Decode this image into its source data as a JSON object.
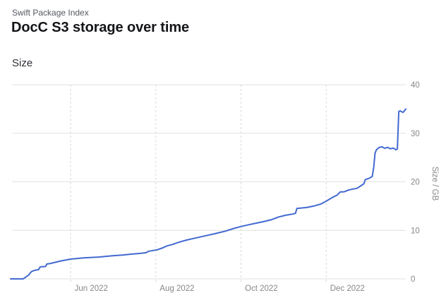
{
  "header": {
    "eyebrow": "Swift Package Index",
    "title": "DocC S3 storage over time"
  },
  "chart_data": {
    "type": "line",
    "title": "Size",
    "ylabel": "Size / GB",
    "xlabel": "",
    "x_domain": [
      "2022-04-19",
      "2023-01-27"
    ],
    "ylim": [
      0,
      40
    ],
    "grid": true,
    "legend": "none",
    "y_ticks": [
      {
        "value": 0,
        "label": "0"
      },
      {
        "value": 10,
        "label": "10"
      },
      {
        "value": 20,
        "label": "20"
      },
      {
        "value": 30,
        "label": "30"
      },
      {
        "value": 40,
        "label": "40"
      }
    ],
    "x_ticks": [
      {
        "date": "2022-06-01",
        "label": "Jun 2022"
      },
      {
        "date": "2022-08-01",
        "label": "Aug 2022"
      },
      {
        "date": "2022-10-01",
        "label": "Oct 2022"
      },
      {
        "date": "2022-12-01",
        "label": "Dec 2022"
      }
    ],
    "colors": {
      "line": "#4269d0",
      "grid_solid": "#e1e1e1",
      "grid_dashed": "#d9d9d9",
      "tick_text": "#878787"
    },
    "series": [
      {
        "name": "Size",
        "points": [
          [
            "2022-04-19",
            0.0
          ],
          [
            "2022-04-28",
            0.0
          ],
          [
            "2022-04-30",
            0.4
          ],
          [
            "2022-05-02",
            0.8
          ],
          [
            "2022-05-03",
            1.2
          ],
          [
            "2022-05-04",
            1.5
          ],
          [
            "2022-05-06",
            1.75
          ],
          [
            "2022-05-09",
            1.9
          ],
          [
            "2022-05-10",
            2.4
          ],
          [
            "2022-05-11",
            2.5
          ],
          [
            "2022-05-14",
            2.55
          ],
          [
            "2022-05-15",
            3.05
          ],
          [
            "2022-05-18",
            3.2
          ],
          [
            "2022-05-20",
            3.35
          ],
          [
            "2022-05-25",
            3.7
          ],
          [
            "2022-06-01",
            4.07
          ],
          [
            "2022-06-11",
            4.35
          ],
          [
            "2022-06-21",
            4.5
          ],
          [
            "2022-07-01",
            4.75
          ],
          [
            "2022-07-08",
            4.9
          ],
          [
            "2022-07-15",
            5.1
          ],
          [
            "2022-07-22",
            5.3
          ],
          [
            "2022-07-25",
            5.4
          ],
          [
            "2022-07-27",
            5.7
          ],
          [
            "2022-08-02",
            6.0
          ],
          [
            "2022-08-06",
            6.4
          ],
          [
            "2022-08-09",
            6.8
          ],
          [
            "2022-08-13",
            7.1
          ],
          [
            "2022-08-18",
            7.6
          ],
          [
            "2022-08-23",
            8.0
          ],
          [
            "2022-08-29",
            8.4
          ],
          [
            "2022-09-05",
            8.85
          ],
          [
            "2022-09-12",
            9.3
          ],
          [
            "2022-09-20",
            9.85
          ],
          [
            "2022-09-26",
            10.4
          ],
          [
            "2022-10-01",
            10.8
          ],
          [
            "2022-10-08",
            11.25
          ],
          [
            "2022-10-13",
            11.55
          ],
          [
            "2022-10-18",
            11.85
          ],
          [
            "2022-10-23",
            12.2
          ],
          [
            "2022-10-28",
            12.75
          ],
          [
            "2022-11-02",
            13.1
          ],
          [
            "2022-11-07",
            13.35
          ],
          [
            "2022-11-09",
            13.5
          ],
          [
            "2022-11-10",
            14.5
          ],
          [
            "2022-11-17",
            14.7
          ],
          [
            "2022-11-22",
            15.0
          ],
          [
            "2022-11-27",
            15.4
          ],
          [
            "2022-12-01",
            16.0
          ],
          [
            "2022-12-05",
            16.7
          ],
          [
            "2022-12-09",
            17.3
          ],
          [
            "2022-12-11",
            17.9
          ],
          [
            "2022-12-14",
            17.95
          ],
          [
            "2022-12-17",
            18.3
          ],
          [
            "2022-12-20",
            18.5
          ],
          [
            "2022-12-23",
            18.65
          ],
          [
            "2022-12-26",
            19.2
          ],
          [
            "2022-12-28",
            19.6
          ],
          [
            "2022-12-29",
            20.45
          ],
          [
            "2023-01-01",
            20.75
          ],
          [
            "2023-01-03",
            21.1
          ],
          [
            "2023-01-04",
            22.9
          ],
          [
            "2023-01-05",
            25.9
          ],
          [
            "2023-01-06",
            26.6
          ],
          [
            "2023-01-08",
            27.1
          ],
          [
            "2023-01-10",
            27.2
          ],
          [
            "2023-01-12",
            26.9
          ],
          [
            "2023-01-14",
            27.1
          ],
          [
            "2023-01-16",
            26.8
          ],
          [
            "2023-01-18",
            26.95
          ],
          [
            "2023-01-20",
            26.6
          ],
          [
            "2023-01-21",
            26.8
          ],
          [
            "2023-01-22",
            34.5
          ],
          [
            "2023-01-23",
            34.6
          ],
          [
            "2023-01-25",
            34.3
          ],
          [
            "2023-01-26",
            34.6
          ],
          [
            "2023-01-27",
            35.0
          ]
        ]
      }
    ]
  }
}
